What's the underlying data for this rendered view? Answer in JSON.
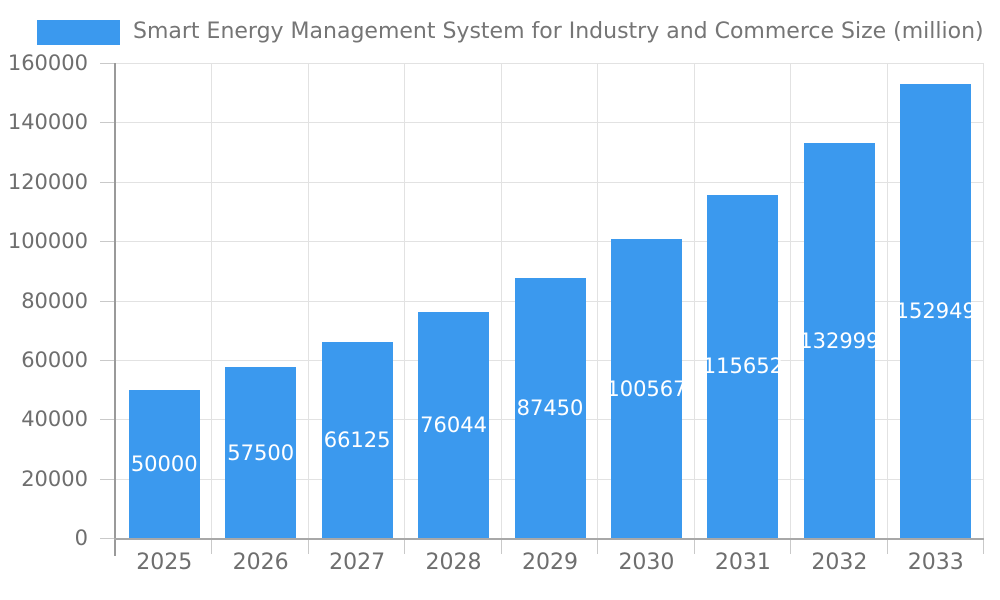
{
  "legend": {
    "label": "Smart Energy Management System for Industry and Commerce Size (million)"
  },
  "chart_data": {
    "type": "bar",
    "title": "Smart Energy Management System for Industry and Commerce Size (million)",
    "xlabel": "",
    "ylabel": "",
    "categories": [
      "2025",
      "2026",
      "2027",
      "2028",
      "2029",
      "2030",
      "2031",
      "2032",
      "2033"
    ],
    "series": [
      {
        "name": "Smart Energy Management System for Industry and Commerce Size (million)",
        "values": [
          50000,
          57500,
          66125,
          76044,
          87450,
          100567,
          115652,
          132999,
          152949
        ]
      }
    ],
    "value_labels_shown": true,
    "ylim": [
      0,
      160000
    ],
    "ytick_step": 20000,
    "yticks": [
      0,
      20000,
      40000,
      60000,
      80000,
      100000,
      120000,
      140000,
      160000
    ],
    "grid": true,
    "legend_position": "top-left",
    "colors": {
      "bar": "#3b99ee",
      "bar_value_text": "#ffffff",
      "axis_line": "#9a9a9a",
      "gridline": "#e2e2e2",
      "tick": "#c9c9c9",
      "axis_text": "#6e6e6e",
      "title_text": "#757575",
      "background": "#ffffff"
    }
  }
}
